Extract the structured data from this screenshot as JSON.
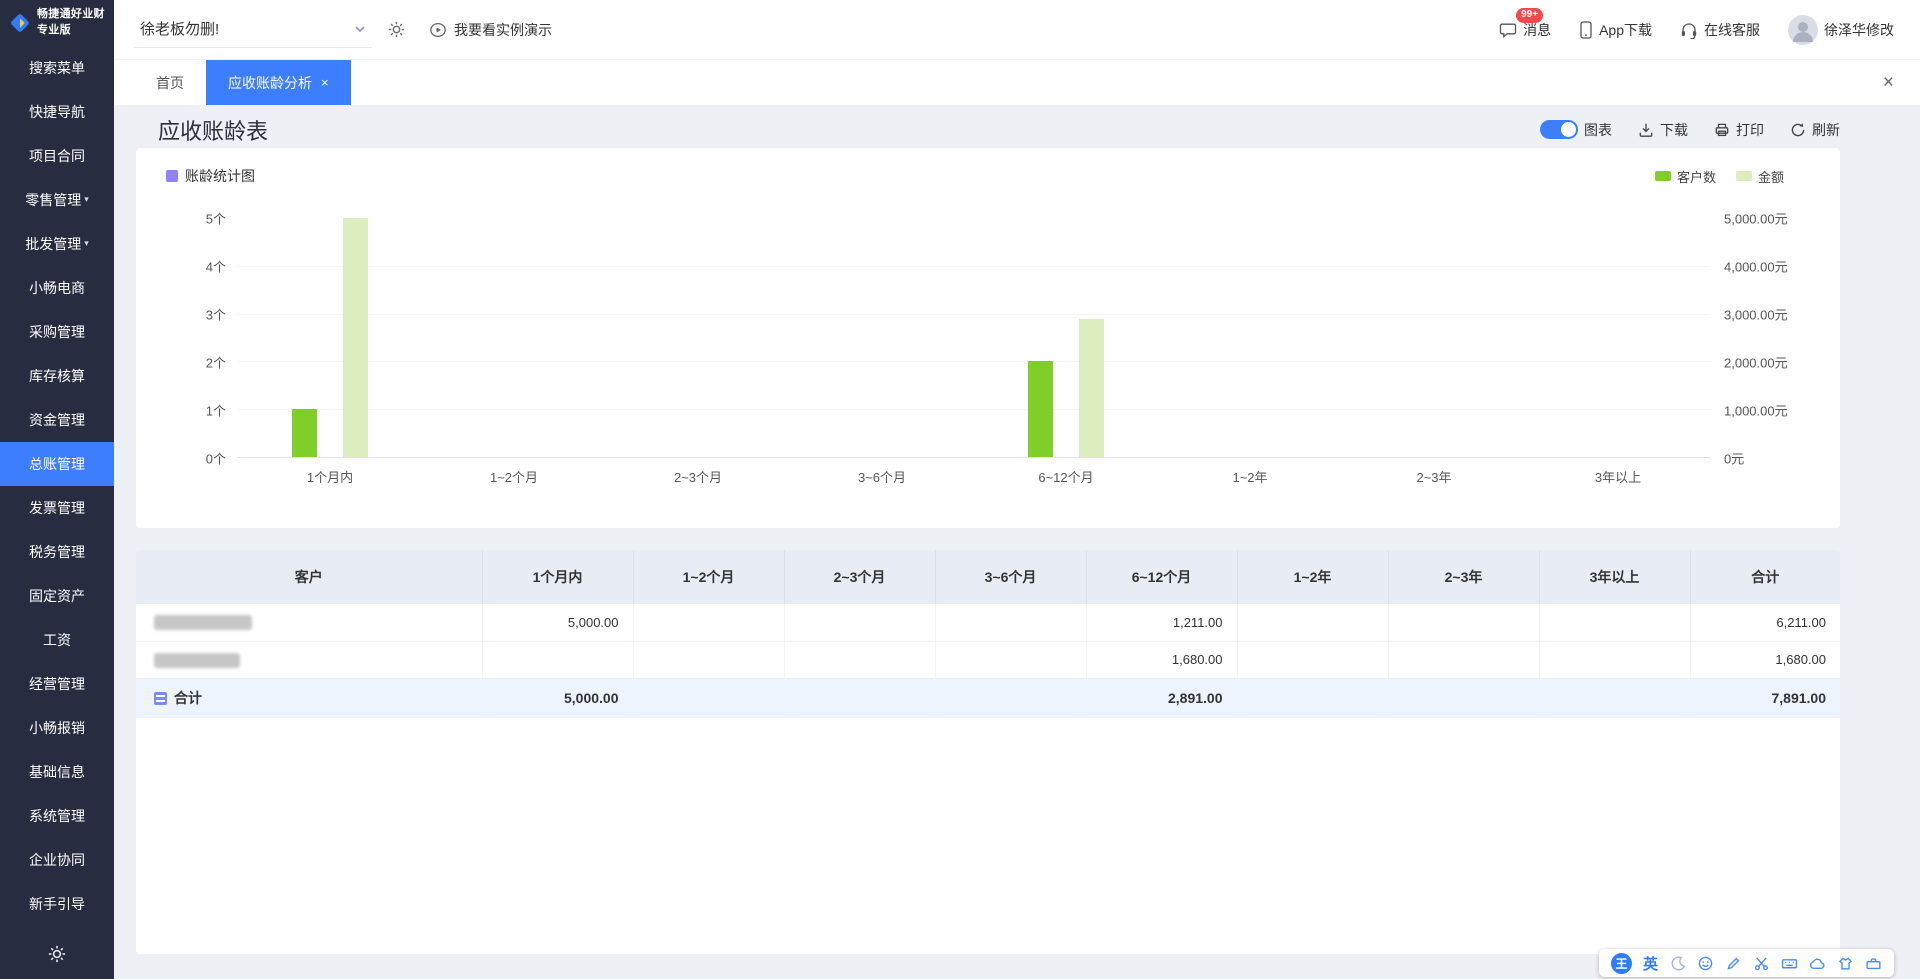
{
  "app": {
    "brand_line1": "畅捷通好业财",
    "brand_line2": "专业版"
  },
  "theme": {
    "accent": "#3d7eff",
    "sidebar_bg": "#272c40",
    "badge_red": "#f5484d",
    "bar_green": "#80cf28",
    "bar_light_green": "#dcedc0",
    "table_header_bg": "#e8ecf4",
    "total_row_bg": "#edf4fd"
  },
  "sidebar": {
    "items": [
      {
        "label": "搜索菜单"
      },
      {
        "label": "快捷导航"
      },
      {
        "label": "项目合同"
      },
      {
        "label": "零售管理",
        "has_arrow": true
      },
      {
        "label": "批发管理",
        "has_arrow": true
      },
      {
        "label": "小畅电商"
      },
      {
        "label": "采购管理"
      },
      {
        "label": "库存核算"
      },
      {
        "label": "资金管理"
      },
      {
        "label": "总账管理",
        "active": true
      },
      {
        "label": "发票管理"
      },
      {
        "label": "税务管理"
      },
      {
        "label": "固定资产"
      },
      {
        "label": "工资"
      },
      {
        "label": "经营管理"
      },
      {
        "label": "小畅报销"
      },
      {
        "label": "基础信息"
      },
      {
        "label": "系统管理"
      },
      {
        "label": "企业协同"
      },
      {
        "label": "新手引导"
      }
    ]
  },
  "topbar": {
    "company": "徐老板勿删!",
    "demo_text": "我要看实例演示",
    "message_label": "消息",
    "message_badge": "99+",
    "app_download_label": "App下载",
    "service_label": "在线客服",
    "username": "徐泽华修改"
  },
  "tabbar": {
    "tabs": [
      {
        "label": "首页",
        "active": false,
        "closable": false
      },
      {
        "label": "应收账龄分析",
        "active": true,
        "closable": true
      }
    ]
  },
  "toolbar": {
    "page_title": "应收账龄表",
    "chart_toggle_label": "图表",
    "chart_toggle_on": true,
    "download_label": "下载",
    "print_label": "打印",
    "refresh_label": "刷新"
  },
  "chart_data": {
    "type": "bar",
    "title": "账龄统计图",
    "categories": [
      "1个月内",
      "1~2个月",
      "2~3个月",
      "3~6个月",
      "6~12个月",
      "1~2年",
      "2~3年",
      "3年以上"
    ],
    "series": [
      {
        "name": "客户数",
        "axis": "left",
        "color": "#80cf28",
        "values": [
          1,
          0,
          0,
          0,
          2,
          0,
          0,
          0
        ]
      },
      {
        "name": "金额",
        "axis": "right",
        "color": "#dcedc0",
        "values": [
          5000,
          0,
          0,
          0,
          2891,
          0,
          0,
          0
        ]
      }
    ],
    "left_axis": {
      "max": 5,
      "min": 0,
      "ticks": [
        "5个",
        "4个",
        "3个",
        "2个",
        "1个",
        "0个"
      ]
    },
    "right_axis": {
      "max": 5000,
      "min": 0,
      "ticks": [
        "5,000.00元",
        "4,000.00元",
        "3,000.00元",
        "2,000.00元",
        "1,000.00元",
        "0元"
      ]
    },
    "legend_position": "top-right",
    "grid": false
  },
  "table": {
    "headers": [
      "客户",
      "1个月内",
      "1~2个月",
      "2~3个月",
      "3~6个月",
      "6~12个月",
      "1~2年",
      "2~3年",
      "3年以上",
      "合计"
    ],
    "rows": [
      {
        "customer_redacted": true,
        "values": [
          "5,000.00",
          "",
          "",
          "",
          "1,211.00",
          "",
          "",
          "",
          "6,211.00"
        ]
      },
      {
        "customer_redacted": true,
        "values": [
          "",
          "",
          "",
          "",
          "1,680.00",
          "",
          "",
          "",
          "1,680.00"
        ]
      }
    ],
    "total_row": {
      "label": "合计",
      "values": [
        "5,000.00",
        "",
        "",
        "",
        "2,891.00",
        "",
        "",
        "",
        "7,891.00"
      ]
    }
  },
  "ime": {
    "logo": "王",
    "lang": "英"
  }
}
